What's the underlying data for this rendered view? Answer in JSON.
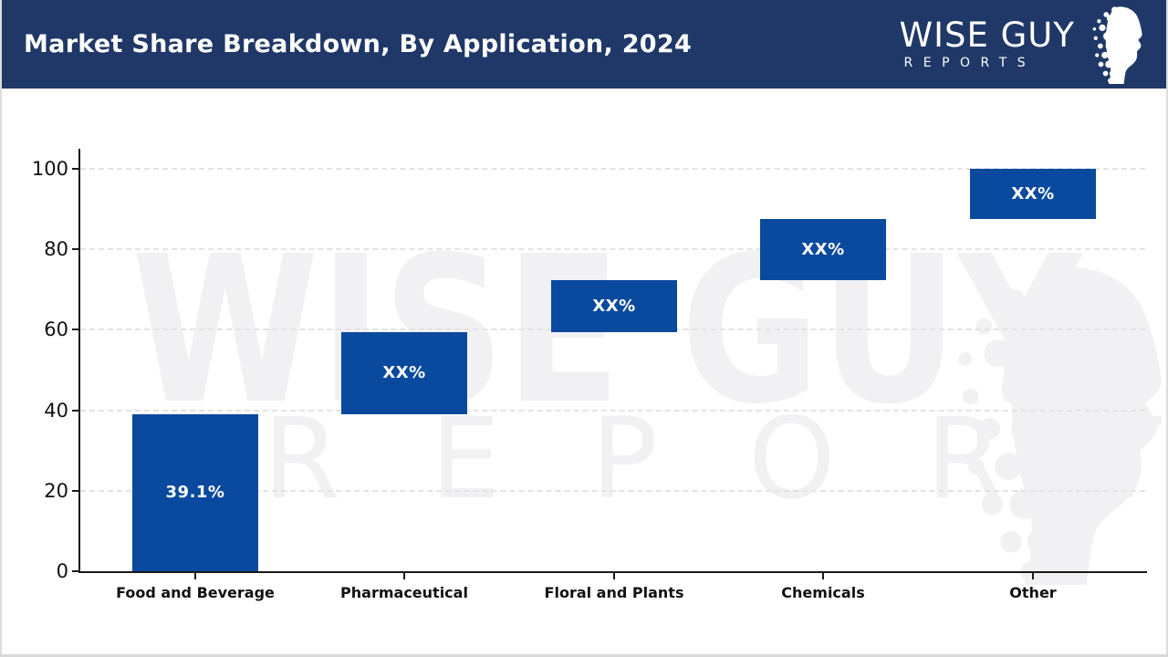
{
  "header": {
    "title": "Market Share Breakdown, By Application, 2024",
    "logo_line1": "WISE GUY",
    "logo_line2": "REPORTS",
    "face_icon": "dotted-face-profile-icon"
  },
  "watermark": {
    "line1": "WISE GUY",
    "line2": "R E P O R T S",
    "face_icon": "dotted-face-profile-icon"
  },
  "chart_data": {
    "type": "waterfall",
    "title": "Market Share Breakdown, By Application, 2024",
    "categories": [
      "Food and Beverage",
      "Pharmaceutical",
      "Floral and Plants",
      "Chemicals",
      "Other"
    ],
    "segments": [
      {
        "category": "Food and Beverage",
        "start": 0,
        "end": 39.1,
        "label": "39.1%"
      },
      {
        "category": "Pharmaceutical",
        "start": 39.1,
        "end": 59.5,
        "label": "XX%"
      },
      {
        "category": "Floral and Plants",
        "start": 59.5,
        "end": 72.3,
        "label": "XX%"
      },
      {
        "category": "Chemicals",
        "start": 72.3,
        "end": 87.5,
        "label": "XX%"
      },
      {
        "category": "Other",
        "start": 87.5,
        "end": 100,
        "label": "XX%"
      }
    ],
    "xlabel": "",
    "ylabel": "",
    "ylim": [
      0,
      100
    ],
    "yticks": [
      0,
      20,
      40,
      60,
      80,
      100
    ],
    "grid": "horizontal-dashed",
    "legend": "none",
    "bar_color": "#0A4A9E",
    "bar_label_color": "#FFFFFF",
    "axis_color": "#1A1A1A",
    "gridline_color": "#E3E3E3"
  },
  "colors": {
    "header_bg": "#1F3867",
    "header_text": "#FFFFFF",
    "page_bg": "#FFFFFF",
    "watermark": "#F1F1F3",
    "border": "#D9D9D9"
  }
}
